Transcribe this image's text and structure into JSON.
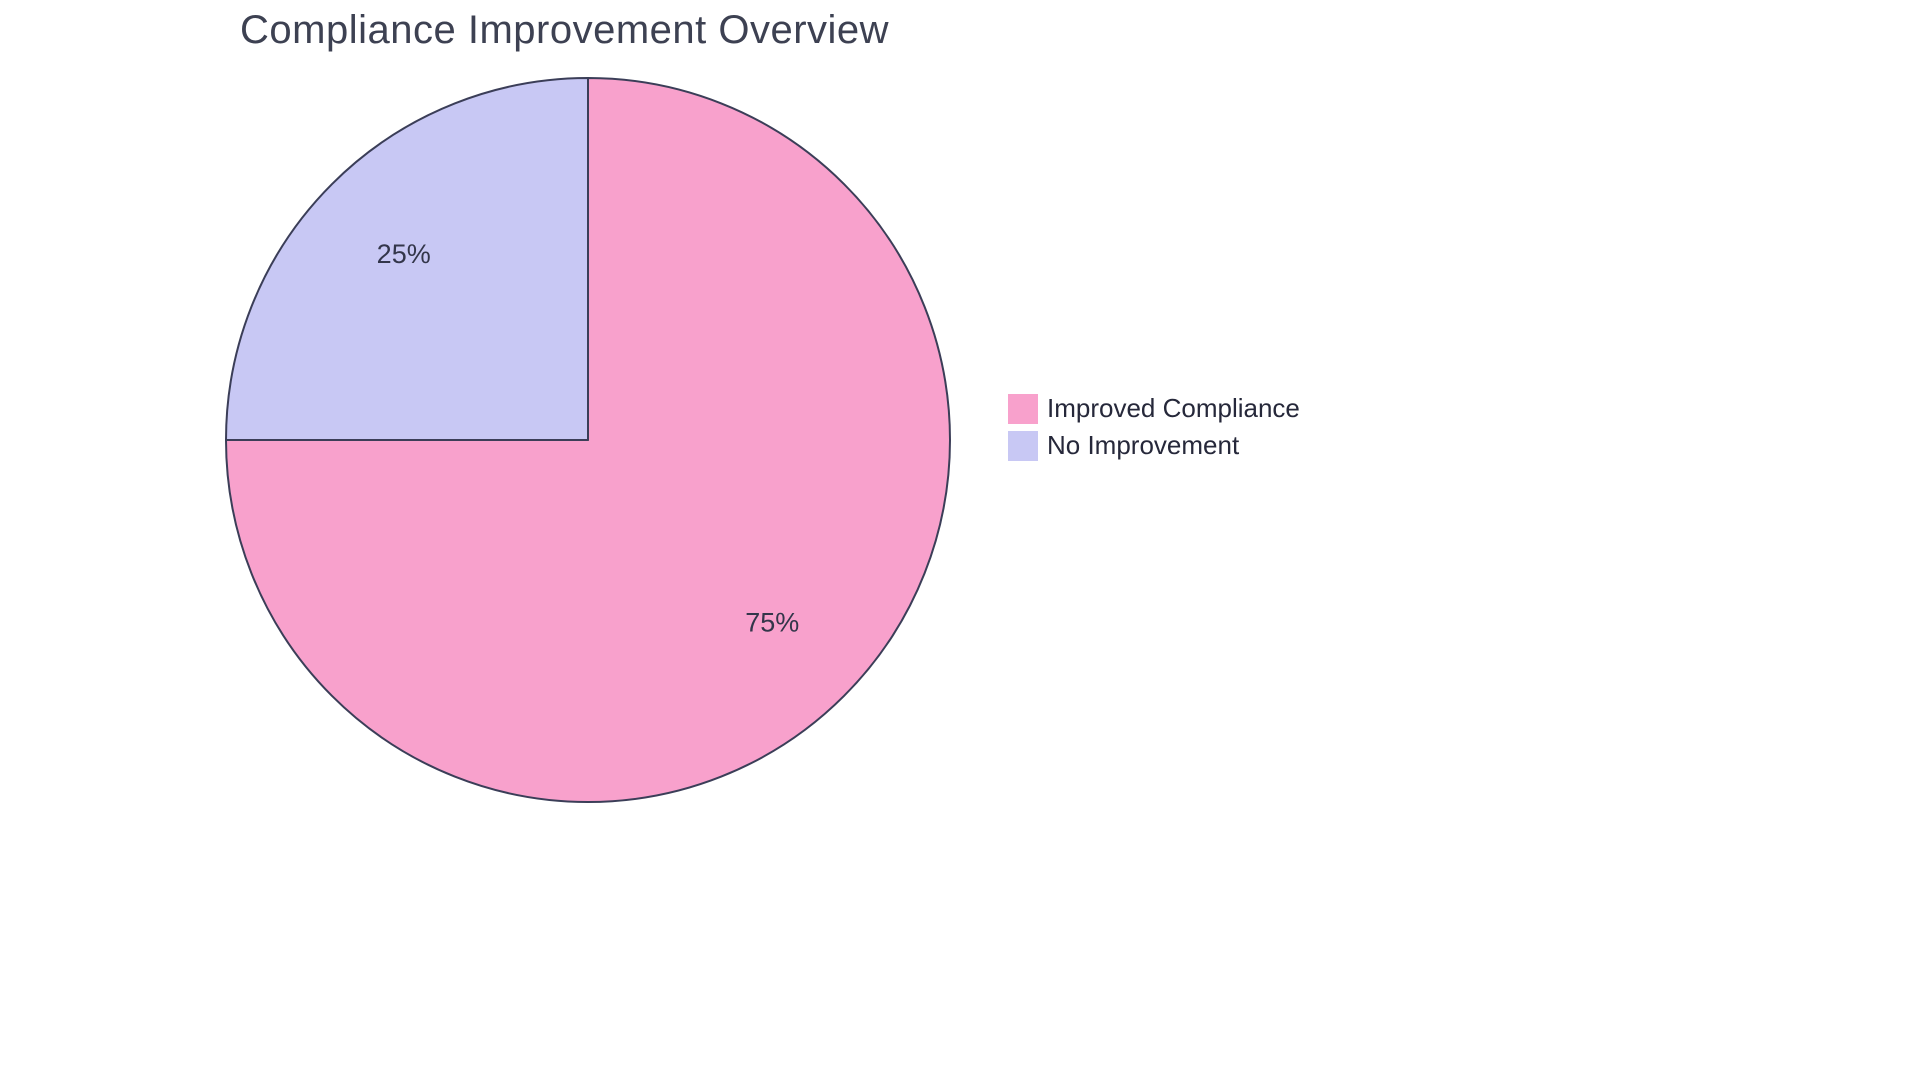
{
  "chart_data": {
    "type": "pie",
    "title": "Compliance Improvement Overview",
    "categories": [
      "Improved Compliance",
      "No Improvement"
    ],
    "values": [
      75,
      25
    ],
    "series": [
      {
        "name": "Improved Compliance",
        "value": 75,
        "percent_label": "75%",
        "color": "#F8A1CC"
      },
      {
        "name": "No Improvement",
        "value": 25,
        "percent_label": "25%",
        "color": "#C8C8F4"
      }
    ],
    "border_color": "#3B3E58",
    "border_width": 2,
    "start_angle_deg": 0,
    "direction": "clockwise",
    "legend_position": "right",
    "labels_inside": true
  }
}
